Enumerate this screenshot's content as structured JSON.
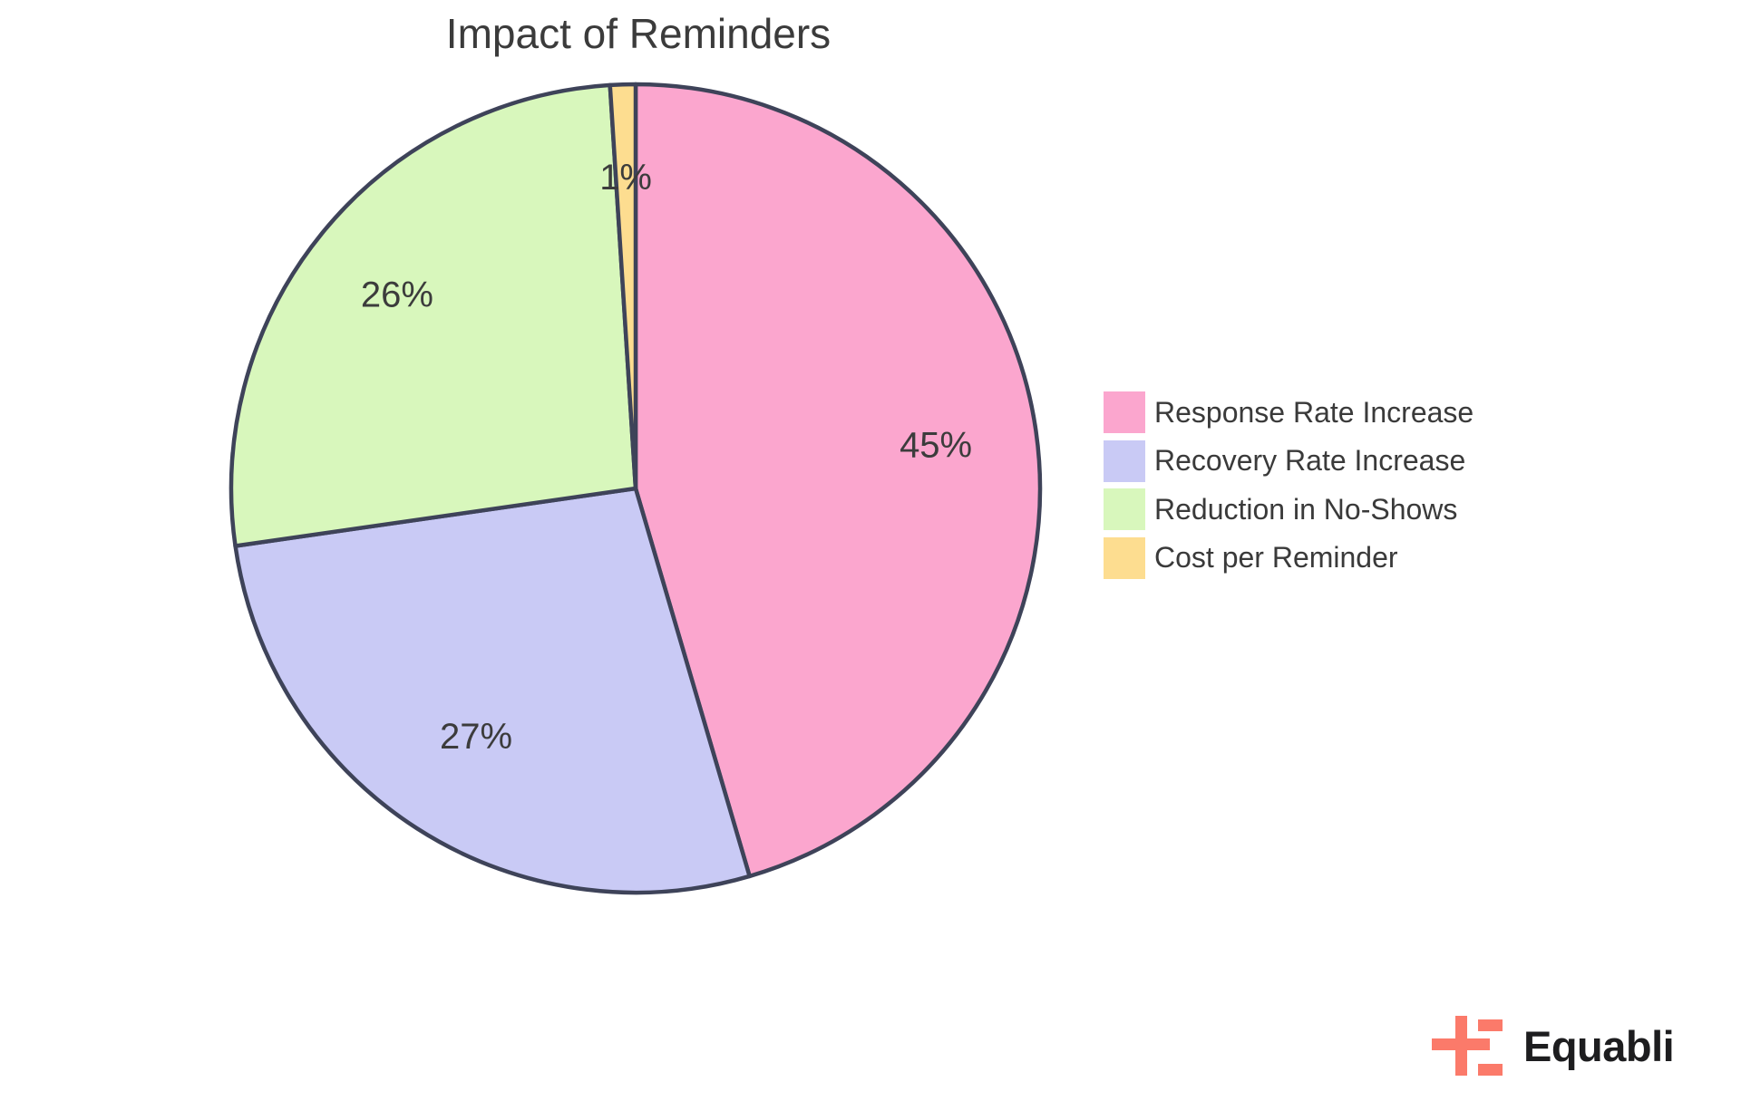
{
  "chart_data": {
    "type": "pie",
    "title": "Impact of Reminders",
    "labels": [
      "Response Rate Increase",
      "Recovery Rate Increase",
      "Reduction in No-Shows",
      "Cost per Reminder"
    ],
    "values": [
      45,
      27,
      26,
      1
    ],
    "unit": "%",
    "slice_labels": [
      "45%",
      "27%",
      "26%",
      "1%"
    ],
    "colors": [
      "#FBA6CE",
      "#C9CAF5",
      "#D8F7BC",
      "#FDDD90"
    ],
    "slice_border_color": "#3E4359",
    "label_text_color": "#3C3C3C",
    "start_angle_deg": 90,
    "direction": "clockwise",
    "legend_position": "right",
    "label_radius": [
      0.75,
      0.73,
      0.76,
      0.77
    ]
  },
  "brand": {
    "name": "Equabli",
    "logo_color": "#FB7A6A"
  }
}
